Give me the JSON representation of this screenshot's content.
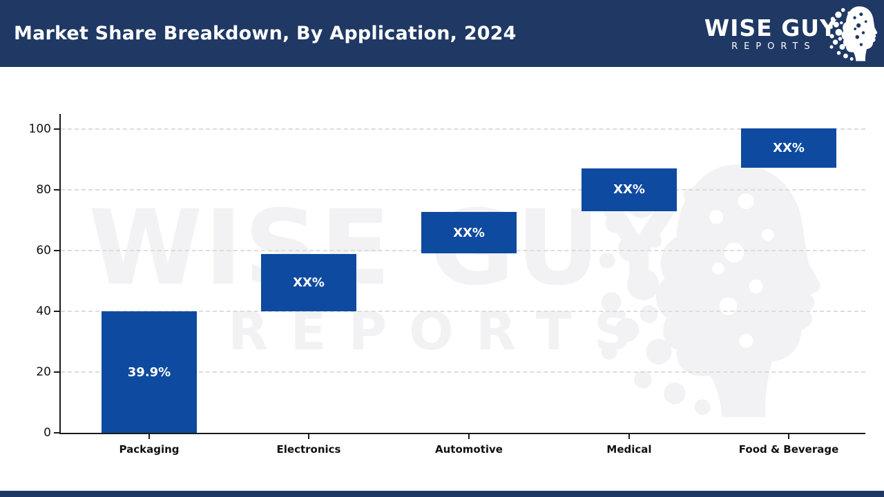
{
  "header": {
    "bg_color": "#1f3864",
    "title": "Market Share Breakdown, By Application, 2024",
    "logo": {
      "wordmark": "WISE GUY",
      "subtext": "REPORTS",
      "head_icon": "head-profile-dots-icon"
    }
  },
  "watermark": {
    "wordmark": "WISE GUY",
    "subtext": "REPORTS"
  },
  "chart_data": {
    "type": "bar",
    "variant": "waterfall",
    "title": "Market Share Breakdown, By Application, 2024",
    "categories": [
      "Packaging",
      "Electronics",
      "Automotive",
      "Medical",
      "Food & Beverage"
    ],
    "segments": [
      {
        "category": "Packaging",
        "start": 0,
        "end": 39.9,
        "label": "39.9%"
      },
      {
        "category": "Electronics",
        "start": 40,
        "end": 58.8,
        "label": "XX%"
      },
      {
        "category": "Automotive",
        "start": 59,
        "end": 72.7,
        "label": "XX%"
      },
      {
        "category": "Medical",
        "start": 73,
        "end": 87,
        "label": "XX%"
      },
      {
        "category": "Food & Beverage",
        "start": 87.2,
        "end": 100.3,
        "label": "XX%"
      }
    ],
    "yticks": [
      0,
      20,
      40,
      60,
      80,
      100
    ],
    "ylim": [
      0,
      105
    ],
    "xlabel": "",
    "ylabel": "",
    "bar_color": "#0e4a9f",
    "value_label_color": "#ffffff",
    "grid": "horizontal-dashed",
    "grid_color": "#dcdcdc",
    "axis_color": "#1a1a1a",
    "legend": "none"
  },
  "footer": {
    "bg_color": "#1f3864"
  }
}
